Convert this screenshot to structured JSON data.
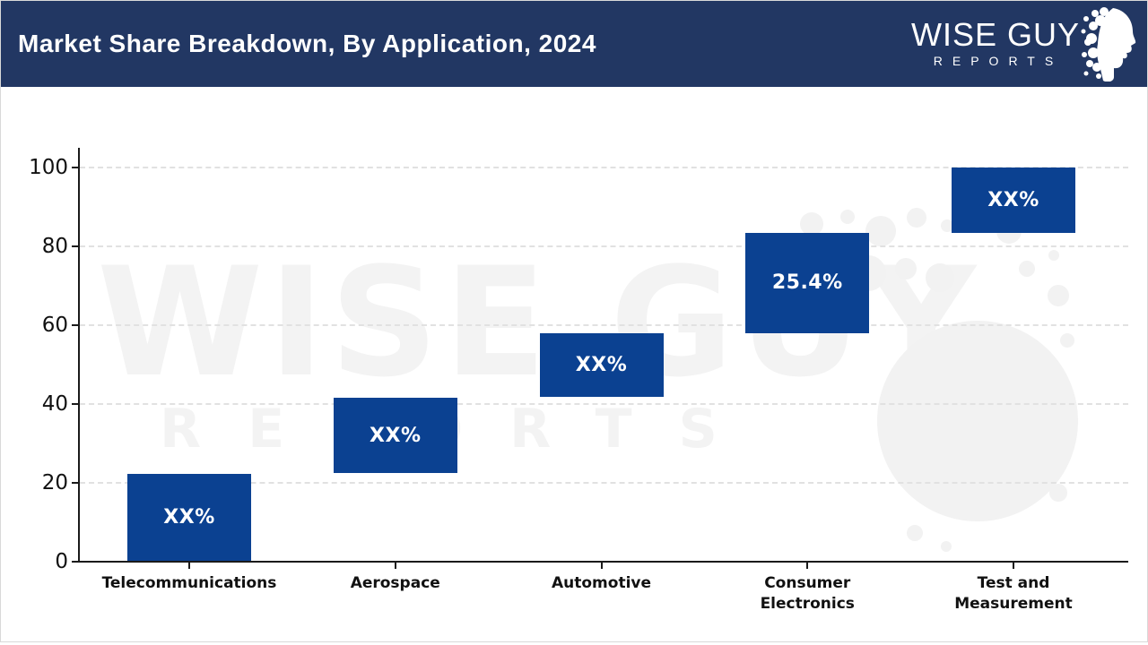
{
  "header": {
    "title": "Market Share Breakdown, By Application, 2024",
    "bg_color": "#223763",
    "logo": {
      "line1": "WISE GUY",
      "line2": "REPORTS"
    }
  },
  "watermark": {
    "line1": "WISE GUY",
    "line2": "REPORTS"
  },
  "chart_data": {
    "type": "bar",
    "variant": "waterfall",
    "title": "Market Share Breakdown, By Application, 2024",
    "categories": [
      "Telecommunications",
      "Aerospace",
      "Automotive",
      "Consumer Electronics",
      "Test and Measurement"
    ],
    "category_label_lines": [
      [
        "Telecommunications"
      ],
      [
        "Aerospace"
      ],
      [
        "Automotive"
      ],
      [
        "Consumer",
        "Electronics"
      ],
      [
        "Test and",
        "Measurement"
      ]
    ],
    "series": [
      {
        "name": "Market share (%)",
        "segments": [
          {
            "category": "Telecommunications",
            "start": 0,
            "end": 22.3,
            "label": "XX%"
          },
          {
            "category": "Aerospace",
            "start": 22.4,
            "end": 41.6,
            "label": "XX%"
          },
          {
            "category": "Automotive",
            "start": 41.9,
            "end": 58.0,
            "label": "XX%"
          },
          {
            "category": "Consumer Electronics",
            "start": 58.0,
            "end": 83.4,
            "label": "25.4%"
          },
          {
            "category": "Test and Measurement",
            "start": 83.4,
            "end": 100.0,
            "label": "XX%"
          }
        ]
      }
    ],
    "xlabel": "",
    "ylabel": "",
    "ylim": [
      0,
      100
    ],
    "yticks": [
      0,
      20,
      40,
      60,
      80,
      100
    ],
    "grid": "horizontal dashed",
    "legend": "none",
    "bar_color": "#0b4191",
    "bar_label_color": "#ffffff",
    "axis_color": "#1a1a1a",
    "grid_color": "#e1e1e1"
  }
}
